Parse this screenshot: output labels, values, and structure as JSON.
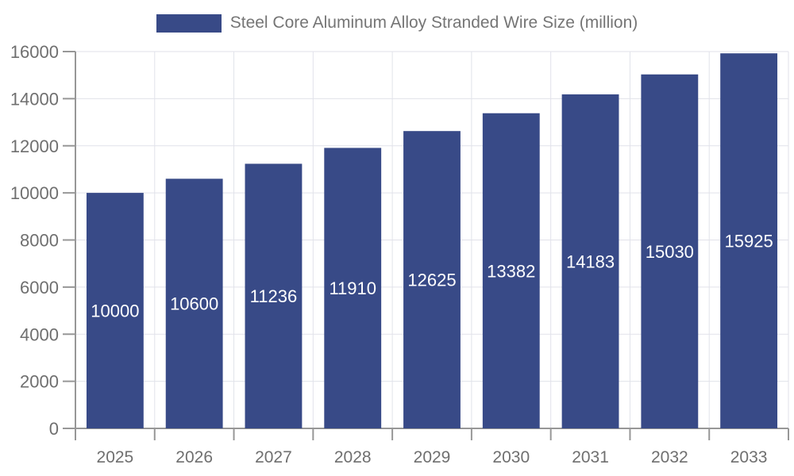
{
  "chart_data": {
    "type": "bar",
    "title": "Steel Core Aluminum Alloy Stranded Wire Size (million)",
    "series": [
      {
        "name": "Steel Core Aluminum Alloy Stranded Wire Size (million)",
        "values": [
          10000,
          10600,
          11236,
          11910,
          12625,
          13382,
          14183,
          15030,
          15925
        ]
      }
    ],
    "categories": [
      "2025",
      "2026",
      "2027",
      "2028",
      "2029",
      "2030",
      "2031",
      "2032",
      "2033"
    ],
    "xlabel": "",
    "ylabel": "",
    "ylim": [
      0,
      16000
    ],
    "yticks": [
      0,
      2000,
      4000,
      6000,
      8000,
      10000,
      12000,
      14000,
      16000
    ],
    "grid": {
      "horizontal": true,
      "vertical": true
    },
    "legend_position": "top-center",
    "value_label_position": "inside-center",
    "colors": {
      "bar": "#384A87",
      "grid": "#E1E2EA",
      "axis": "#979797",
      "tick_label": "#6F6F6F",
      "legend_text": "#757575",
      "value_label": "#FFFFFF",
      "background": "#FFFFFF"
    }
  }
}
